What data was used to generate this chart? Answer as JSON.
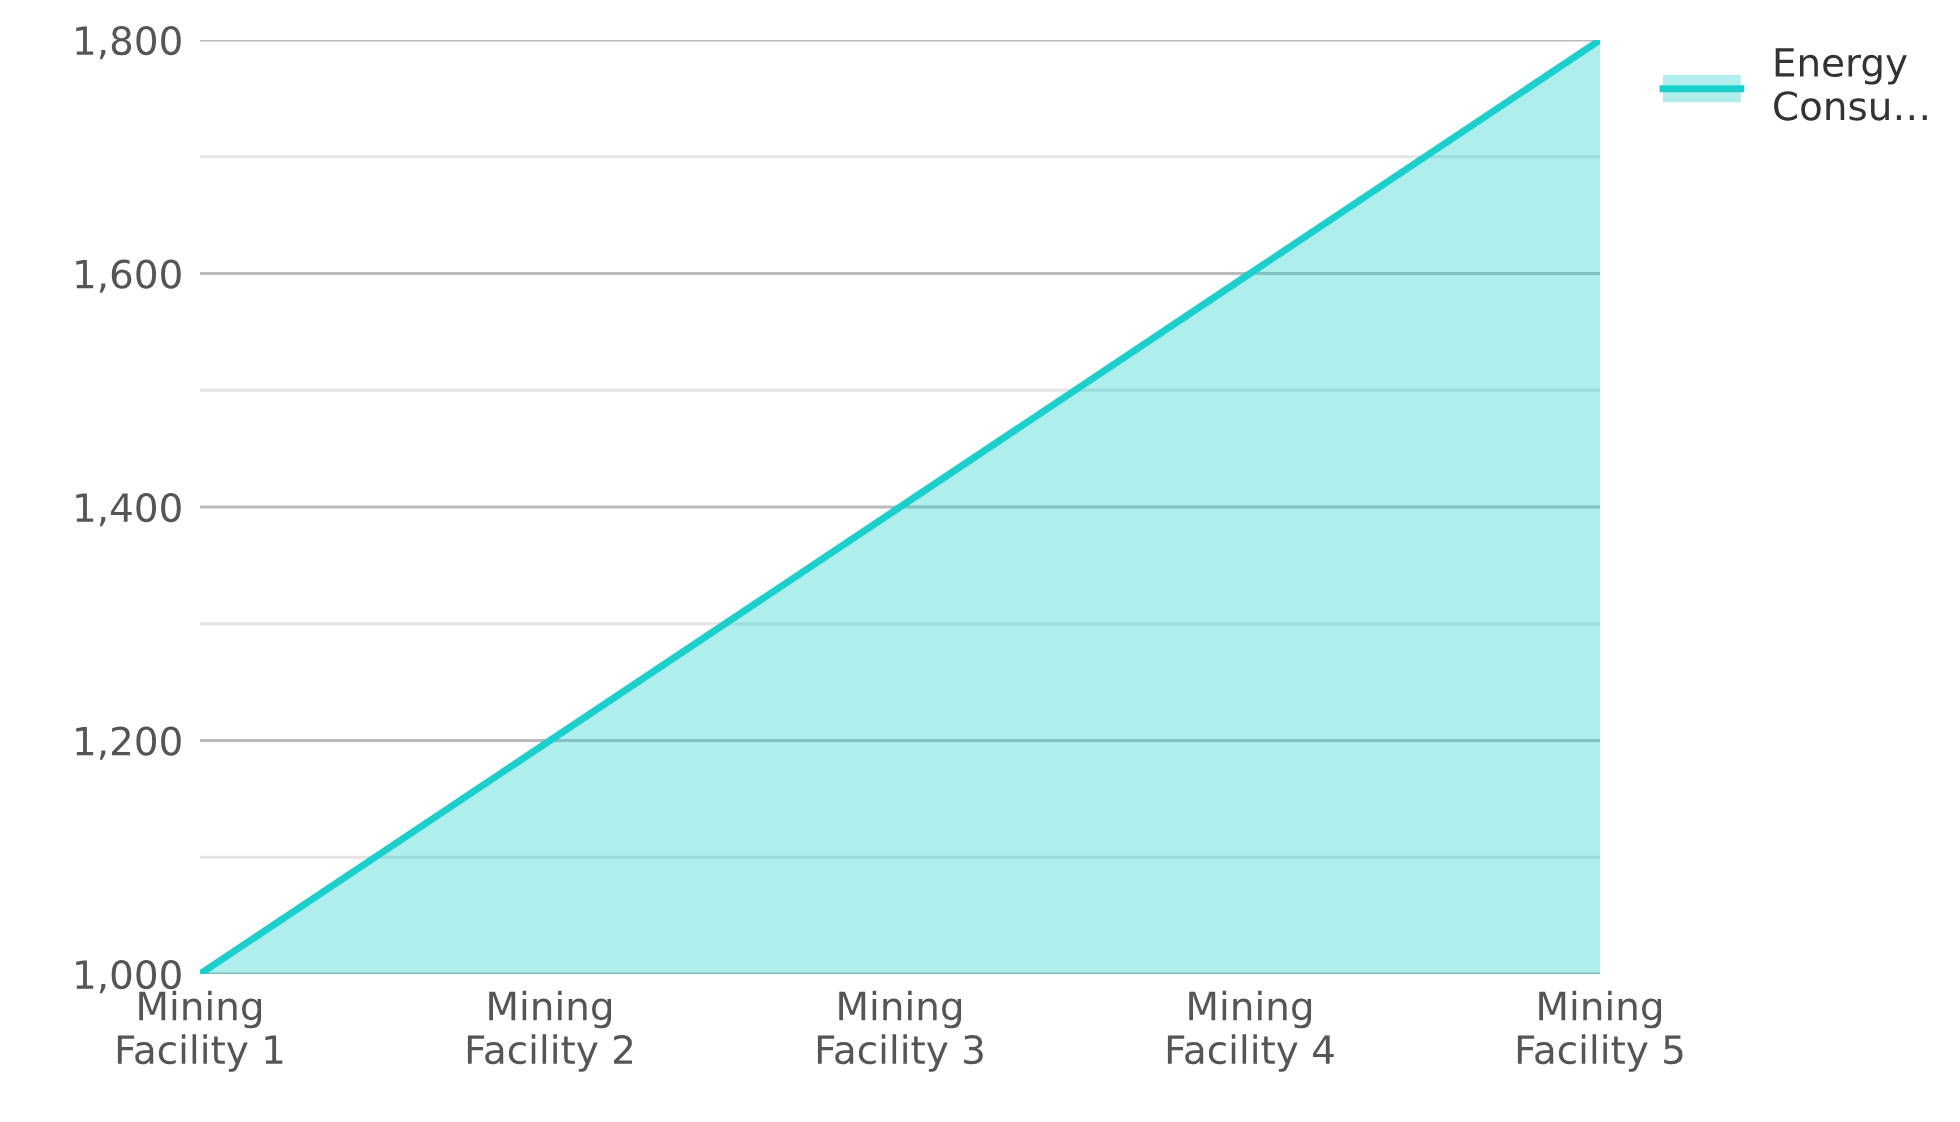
{
  "chart_data": {
    "type": "area",
    "categories": [
      "Mining Facility 1",
      "Mining Facility 2",
      "Mining Facility 3",
      "Mining Facility 4",
      "Mining Facility 5"
    ],
    "series": [
      {
        "name": "Energy Consu…",
        "color": "#1ccfcc",
        "values": [
          1000,
          1200,
          1400,
          1600,
          1800
        ]
      }
    ],
    "ylim": [
      1000,
      1800
    ],
    "yticks": [
      {
        "value": 1000,
        "label": "1,000"
      },
      {
        "value": 1100,
        "label": null
      },
      {
        "value": 1200,
        "label": "1,200"
      },
      {
        "value": 1300,
        "label": null
      },
      {
        "value": 1400,
        "label": "1,400"
      },
      {
        "value": 1500,
        "label": null
      },
      {
        "value": 1600,
        "label": "1,600"
      },
      {
        "value": 1700,
        "label": null
      },
      {
        "value": 1800,
        "label": "1,800"
      }
    ],
    "grid": "y",
    "legend": "top right",
    "marker": "none",
    "line_style": "solid"
  }
}
